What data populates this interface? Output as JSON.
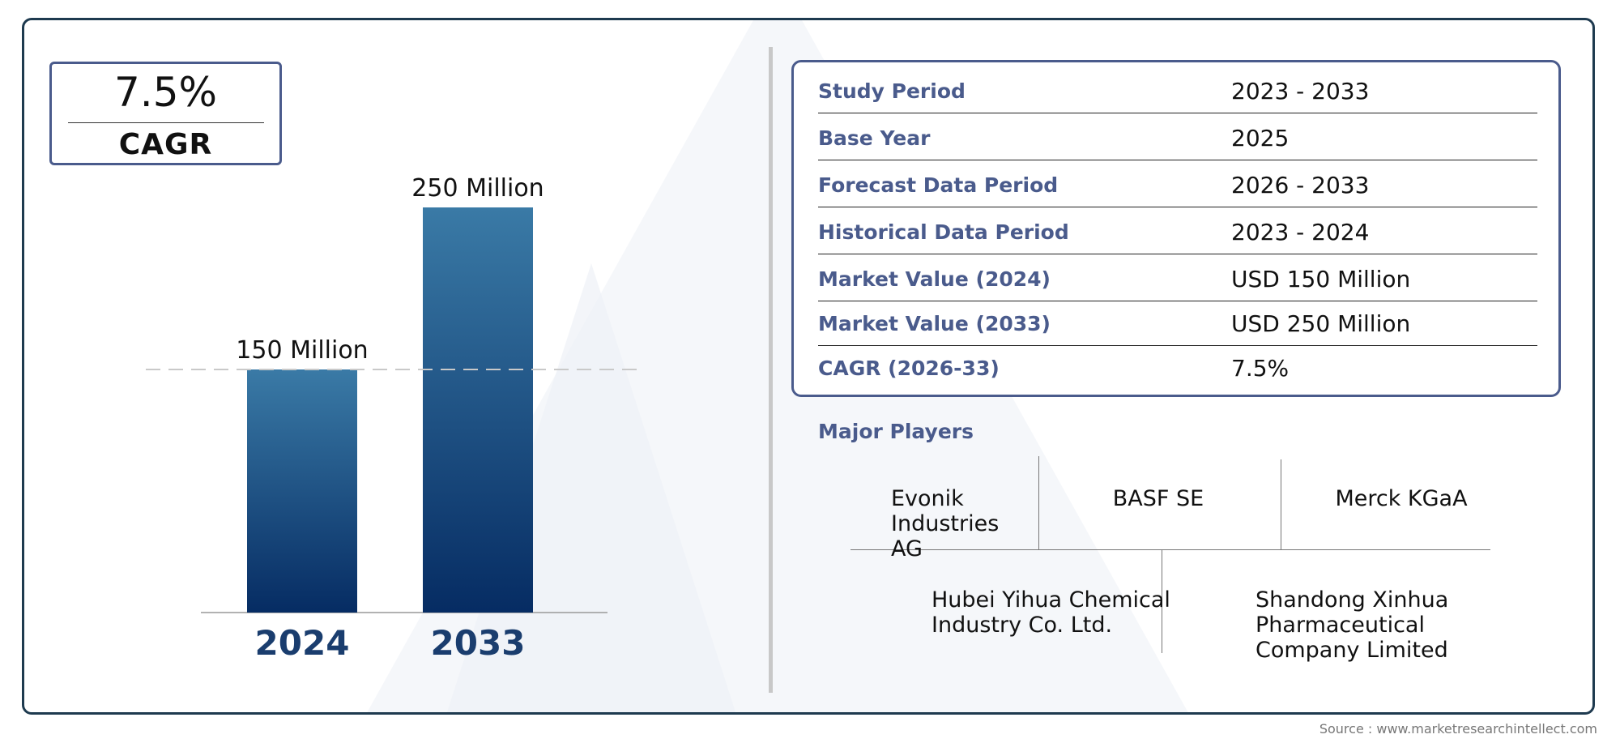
{
  "cagr_box": {
    "value": "7.5%",
    "label": "CAGR"
  },
  "chart_data": {
    "type": "bar",
    "categories": [
      "2024",
      "2033"
    ],
    "values": [
      150,
      250
    ],
    "data_labels": [
      "150 Million",
      "250 Million"
    ],
    "unit": "Million",
    "ylim": [
      0,
      260
    ],
    "reference_line_at": 150,
    "colors": {
      "bar_top": "#3a7aa6",
      "bar_bottom": "#062c63",
      "category_label": "#1a3d6e"
    }
  },
  "info_table": {
    "rows": [
      {
        "label": "Study Period",
        "value": "2023 - 2033"
      },
      {
        "label": "Base Year",
        "value": "2025"
      },
      {
        "label": "Forecast Data Period",
        "value": "2026 - 2033"
      },
      {
        "label": "Historical Data Period",
        "value": "2023 - 2024"
      },
      {
        "label": "Market Value (2024)",
        "value": "USD 150 Million"
      },
      {
        "label": "Market Value (2033)",
        "value": "USD 250 Million"
      },
      {
        "label": "CAGR (2026-33)",
        "value": "7.5%"
      }
    ]
  },
  "players": {
    "title": "Major Players",
    "items": [
      "Evonik Industries AG",
      "BASF SE",
      "Merck KGaA",
      "Hubei Yihua Chemical Industry Co. Ltd.",
      "Shandong Xinhua Pharmaceutical Company Limited"
    ]
  },
  "source": "Source : www.marketresearchintellect.com",
  "colors": {
    "frame": "#1e3a4f",
    "accent": "#4a5b8c"
  }
}
